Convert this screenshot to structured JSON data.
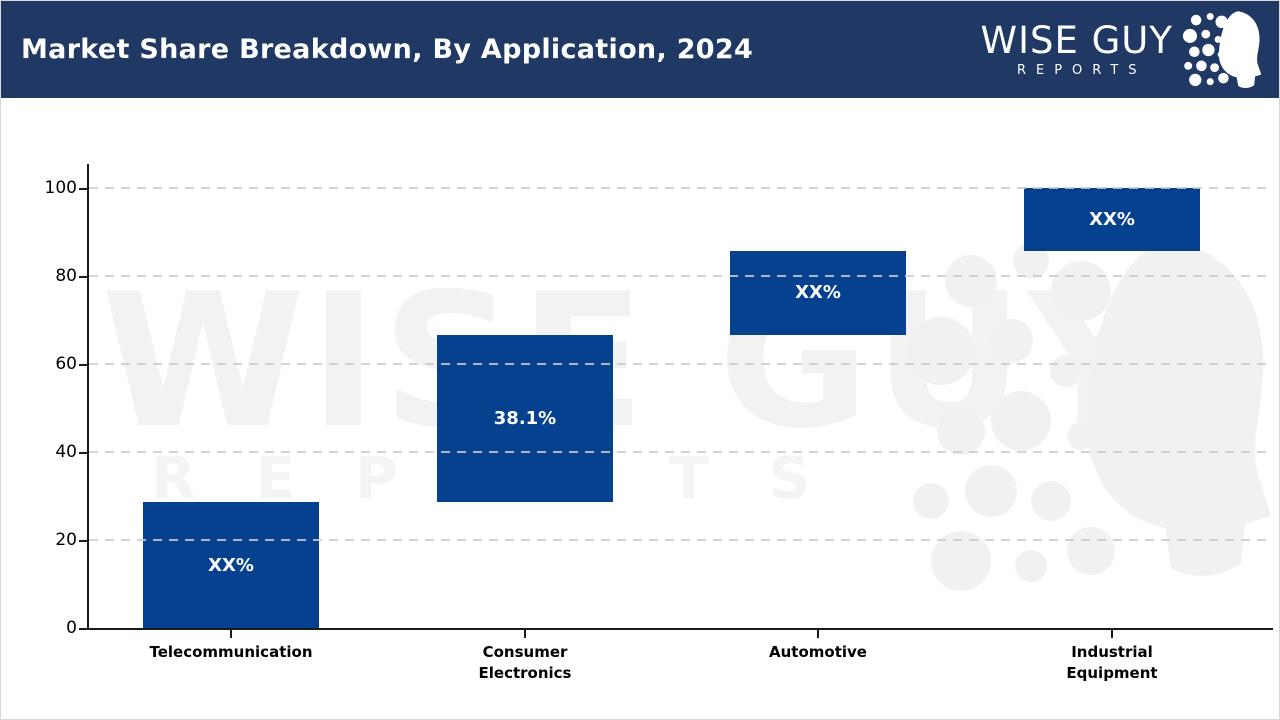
{
  "header": {
    "title": "Market Share Breakdown, By Application, 2024",
    "logo": {
      "line1": "WISE GUY",
      "line2": "REPORTS"
    }
  },
  "watermark": {
    "line1": "WISE GUY",
    "line2": "REPORTS"
  },
  "colors": {
    "header_bg": "#1f3864",
    "bar": "#05418f",
    "grid": "#d8d8d8",
    "axis": "#1a1a1a",
    "value_label": "#ffffff"
  },
  "chart_data": {
    "type": "bar",
    "subtype": "waterfall-floating-bars",
    "title": "Market Share Breakdown, By Application, 2024",
    "categories": [
      "Telecommunication",
      "Consumer\nElectronics",
      "Automotive",
      "Industrial\nEquipment"
    ],
    "segments": [
      {
        "category": "Telecommunication",
        "start": 0,
        "end": 28.6,
        "value": 28.6,
        "label": "XX%"
      },
      {
        "category": "Consumer Electronics",
        "start": 28.6,
        "end": 66.7,
        "value": 38.1,
        "label": "38.1%"
      },
      {
        "category": "Automotive",
        "start": 66.7,
        "end": 85.7,
        "value": 19.0,
        "label": "XX%"
      },
      {
        "category": "Industrial Equipment",
        "start": 85.7,
        "end": 100,
        "value": 14.3,
        "label": "XX%"
      }
    ],
    "yticks": [
      0,
      20,
      40,
      60,
      80,
      100
    ],
    "ylim": [
      0,
      106
    ],
    "xlabel": "",
    "ylabel": "",
    "grid": "dashed-horizontal",
    "legend": "none",
    "bar_color": "#05418f"
  }
}
